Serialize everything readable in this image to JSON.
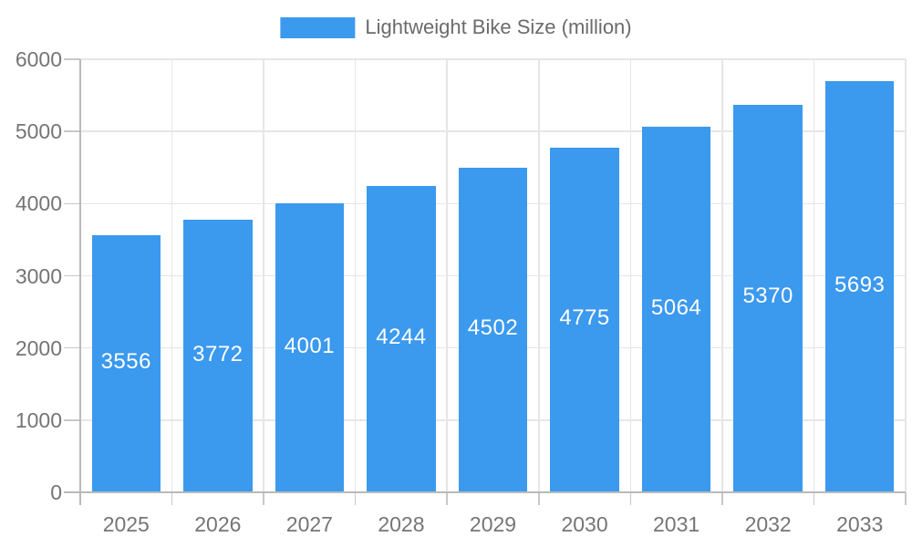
{
  "legend": {
    "label": "Lightweight Bike Size (million)"
  },
  "colors": {
    "bar": "#3b99ee",
    "axis_line": "#b9b9b9",
    "grid_line": "#e6e6e6",
    "tick": "#c8c8c8",
    "axis_label": "#757575",
    "value_label": "#ffffff",
    "legend_text": "#6b6b6b",
    "background": "#ffffff"
  },
  "chart_data": {
    "type": "bar",
    "title": "",
    "series_name": "Lightweight Bike Size (million)",
    "categories": [
      "2025",
      "2026",
      "2027",
      "2028",
      "2029",
      "2030",
      "2031",
      "2032",
      "2033"
    ],
    "values": [
      3556,
      3772,
      4001,
      4244,
      4502,
      4775,
      5064,
      5370,
      5693
    ],
    "xlabel": "",
    "ylabel": "",
    "ylim": [
      0,
      6000
    ],
    "ytick_step": 1000,
    "yticks": [
      "0",
      "1000",
      "2000",
      "3000",
      "4000",
      "5000",
      "6000"
    ],
    "grid": true,
    "legend_position": "top-center",
    "value_labels": "inside-center"
  }
}
